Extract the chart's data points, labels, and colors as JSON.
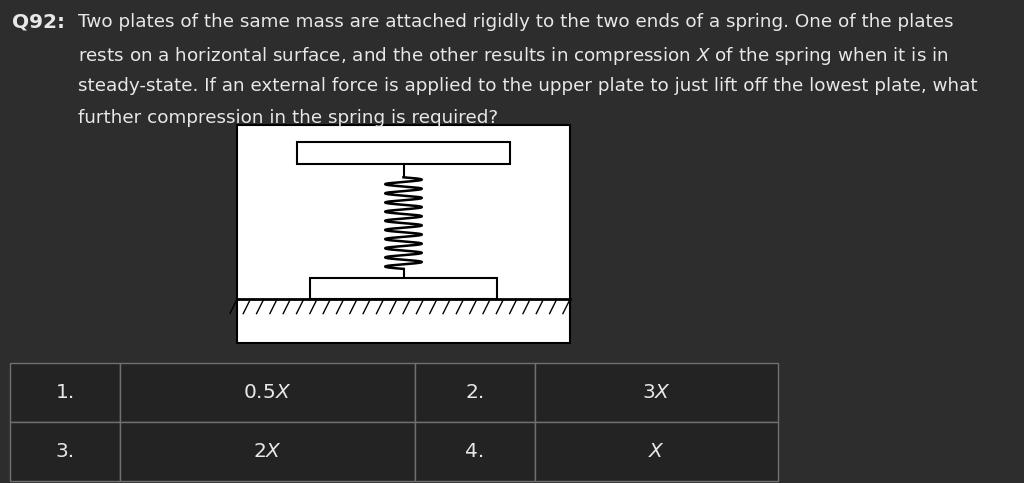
{
  "background_color": "#2d2d2d",
  "text_color": "#e8e8e8",
  "question_label": "Q92:",
  "lines": [
    "Two plates of the same mass are attached rigidly to the two ends of a spring. One of the plates",
    "rests on a horizontal surface, and the other results in compression $X$ of the spring when it is in",
    "steady-state. If an external force is applied to the upper plate to just lift off the lowest plate, what",
    "further compression in the spring is required?"
  ],
  "table_options": [
    [
      "1.",
      "0.5$X$",
      "2.",
      "3$X$"
    ],
    [
      "3.",
      "2$X$",
      "4.",
      "$X$"
    ]
  ],
  "diagram_bg": "#ffffff",
  "table_bg": "#232323",
  "table_border_color": "#707070"
}
